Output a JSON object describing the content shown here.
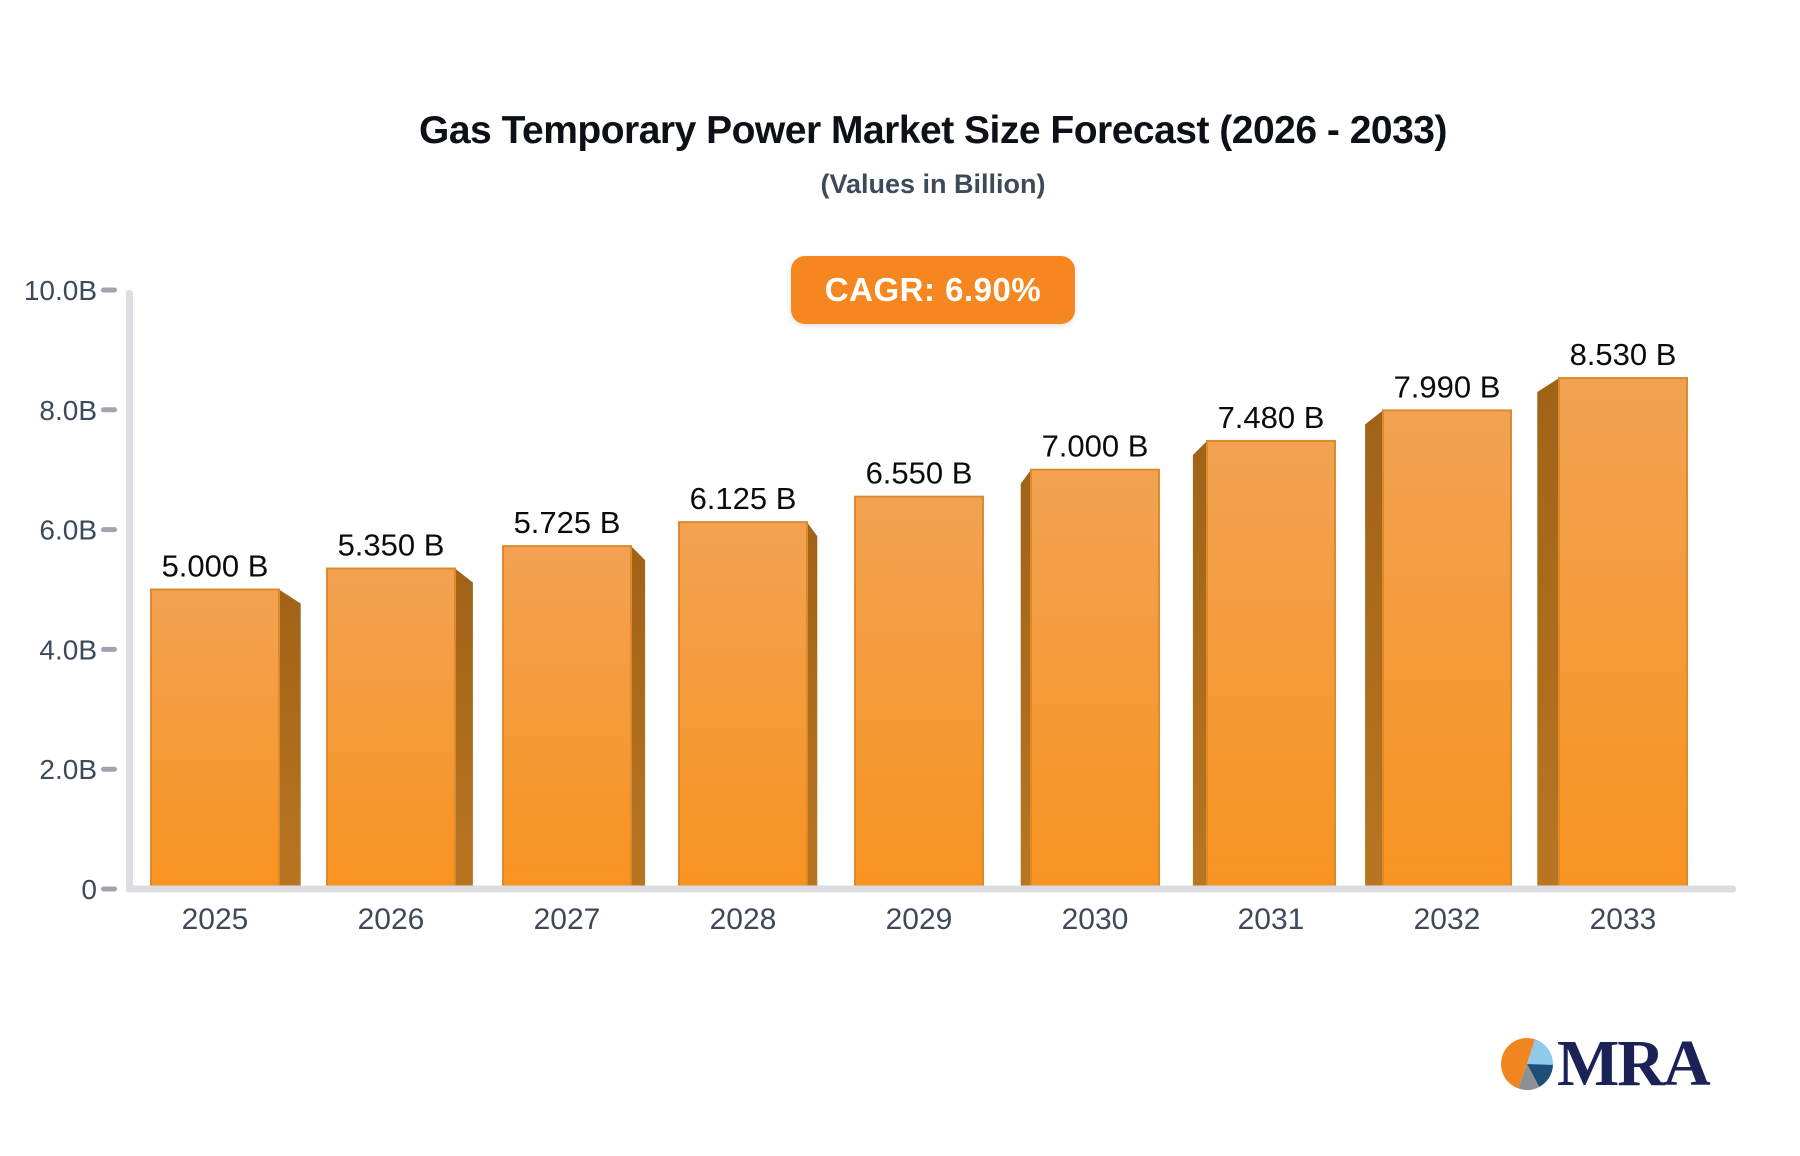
{
  "badge": {
    "label": "CAGR: 6.90%",
    "bg_color": "#F6861F",
    "text_color": "#FFFFFF"
  },
  "chart_data": {
    "type": "bar",
    "title": "Gas Temporary Power Market Size Forecast (2026 - 2033)",
    "subtitle": "(Values in Billion)",
    "categories": [
      "2025",
      "2026",
      "2027",
      "2028",
      "2029",
      "2030",
      "2031",
      "2032",
      "2033"
    ],
    "values": [
      5.0,
      5.35,
      5.725,
      6.125,
      6.55,
      7.0,
      7.48,
      7.99,
      8.53
    ],
    "value_labels": [
      "5.000 B",
      "5.350 B",
      "5.725 B",
      "6.125 B",
      "6.550 B",
      "7.000 B",
      "7.480 B",
      "7.990 B",
      "8.530 B"
    ],
    "y_ticks": [
      {
        "label": "10.0B",
        "value": 10
      },
      {
        "label": "8.0B",
        "value": 8
      },
      {
        "label": "6.0B",
        "value": 6
      },
      {
        "label": "4.0B",
        "value": 4
      },
      {
        "label": "2.0B",
        "value": 2
      },
      {
        "label": "0",
        "value": 0
      }
    ],
    "ylim": [
      0,
      10
    ],
    "grid": "none",
    "legend": "none",
    "bar_colors": {
      "face_top": "#F2A252",
      "face_bottom": "#F79320",
      "side_top": "#A06317",
      "side_bottom": "#BA7520",
      "edge": "#DC8A2B"
    },
    "axis_color": "#DBDDE1",
    "tick_color": "#9DA5B0",
    "axis_label_color": "#3C4A5C",
    "value_label_color": "#0b0b0b"
  },
  "logo": {
    "text": "MRA",
    "text_color": "#1B2257",
    "pie_slices": [
      {
        "name": "orange-slice",
        "color": "#EF861F",
        "from": 200,
        "to": 378
      },
      {
        "name": "light-blue-slice",
        "color": "#8FCAEA",
        "from": 18,
        "to": 92
      },
      {
        "name": "navy-slice",
        "color": "#1F4E79",
        "from": 92,
        "to": 152
      },
      {
        "name": "gray-slice",
        "color": "#8F9094",
        "from": 152,
        "to": 200
      }
    ]
  }
}
